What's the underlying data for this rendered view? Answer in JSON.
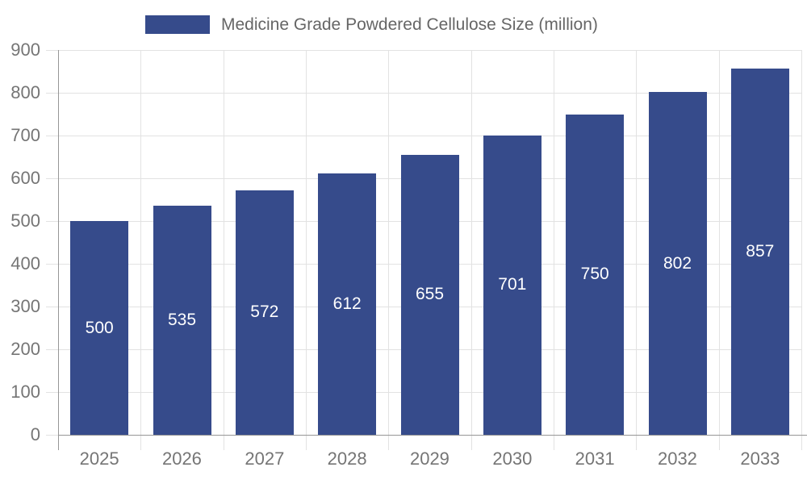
{
  "legend": {
    "label": "Medicine Grade Powdered Cellulose Size (million)"
  },
  "colors": {
    "bar": "#364b8b",
    "grid": "#e2e2e2",
    "axis": "#969696",
    "tick_label": "#757575",
    "legend_text": "#666666",
    "value_label": "#ffffff",
    "background": "#ffffff"
  },
  "chart_data": {
    "type": "bar",
    "title": "Medicine Grade Powdered Cellulose Size (million)",
    "categories": [
      "2025",
      "2026",
      "2027",
      "2028",
      "2029",
      "2030",
      "2031",
      "2032",
      "2033"
    ],
    "values": [
      500,
      535,
      572,
      612,
      655,
      701,
      750,
      802,
      857
    ],
    "value_labels": [
      "500",
      "535",
      "572",
      "612",
      "655",
      "701",
      "750",
      "802",
      "857"
    ],
    "xlabel": "",
    "ylabel": "",
    "ylim": [
      0,
      900
    ],
    "yticks": [
      0,
      100,
      200,
      300,
      400,
      500,
      600,
      700,
      800,
      900
    ],
    "grid": true,
    "legend_position": "top"
  }
}
